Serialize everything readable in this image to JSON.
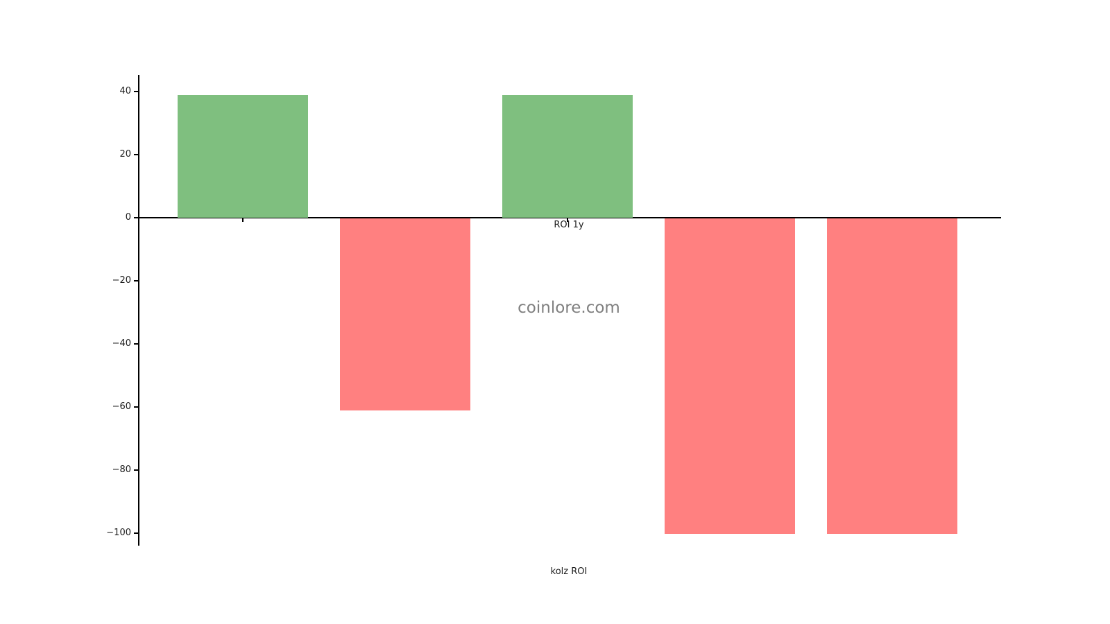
{
  "chart_data": {
    "type": "bar",
    "title": "",
    "categories": [
      "",
      "",
      "ROI 1y",
      "",
      ""
    ],
    "values": [
      39,
      -61,
      39,
      -100,
      -100
    ],
    "bar_colors": [
      "#7fbf7f",
      "#ff8080",
      "#7fbf7f",
      "#ff8080",
      "#ff8080"
    ],
    "positive_color": "#7fbf7f",
    "negative_color": "#ff8080",
    "yticks": [
      40,
      20,
      0,
      -20,
      -40,
      -60,
      -80,
      -100
    ],
    "ytick_labels": [
      "40",
      "20",
      "0",
      "−20",
      "−40",
      "−60",
      "−80",
      "−100"
    ],
    "visible_x_tick_indices": [
      0,
      2
    ],
    "xlabel": "kolz ROI",
    "watermark": "coinlore.com",
    "ylim": [
      -107,
      46
    ],
    "grid": false,
    "axis_color": "#000000",
    "tick_text_color": "#1a1a1a",
    "watermark_color": "#7f7f7f"
  }
}
